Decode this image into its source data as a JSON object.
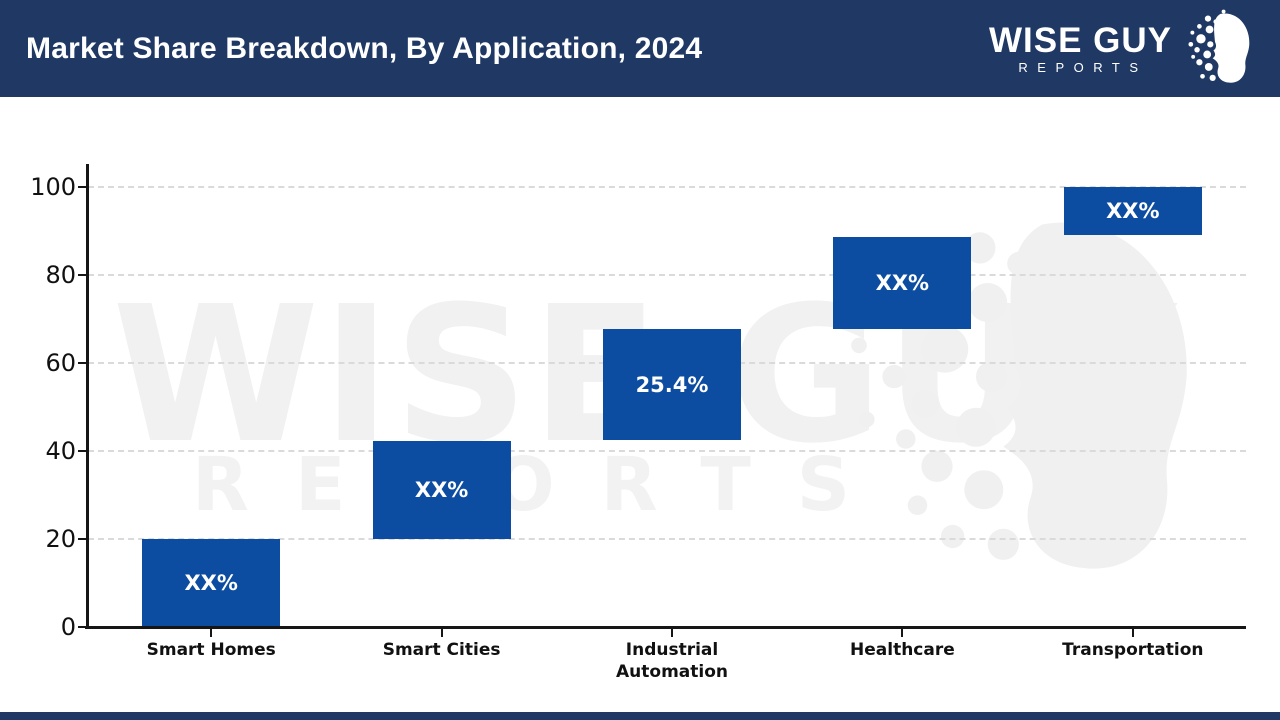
{
  "header": {
    "title": "Market Share Breakdown, By Application, 2024",
    "bg_color": "#1f3864",
    "text_color": "#ffffff",
    "logo": {
      "line1": "WISE GUY",
      "line2": "REPORTS"
    }
  },
  "watermark": {
    "line1": "WISE GUY",
    "line2": "REPORTS"
  },
  "chart_data": {
    "type": "bar",
    "variant": "floating-waterfall",
    "title": "Market Share Breakdown, By Application, 2024",
    "categories": [
      "Smart Homes",
      "Smart Cities",
      "Industrial Automation",
      "Healthcare",
      "Transportation"
    ],
    "segments": [
      {
        "category": "Smart Homes",
        "start": 0,
        "end": 20,
        "label": "XX%"
      },
      {
        "category": "Smart Cities",
        "start": 20,
        "end": 42.3,
        "label": "XX%"
      },
      {
        "category": "Industrial Automation",
        "start": 42.4,
        "end": 67.8,
        "label": "25.4%"
      },
      {
        "category": "Healthcare",
        "start": 67.8,
        "end": 88.6,
        "label": "XX%"
      },
      {
        "category": "Transportation",
        "start": 89.1,
        "end": 100,
        "label": "XX%"
      }
    ],
    "values": [
      20,
      22.3,
      25.4,
      20.8,
      10.9
    ],
    "xlabel": "",
    "ylabel": "",
    "ylim": [
      0,
      100
    ],
    "yticks": [
      0,
      20,
      40,
      60,
      80,
      100
    ],
    "grid": "horizontal-dashed",
    "legend": "none",
    "bar_color": "#0d4da1",
    "bar_label_color": "#ffffff",
    "grid_color": "#dadada",
    "axis_color": "#161616"
  }
}
